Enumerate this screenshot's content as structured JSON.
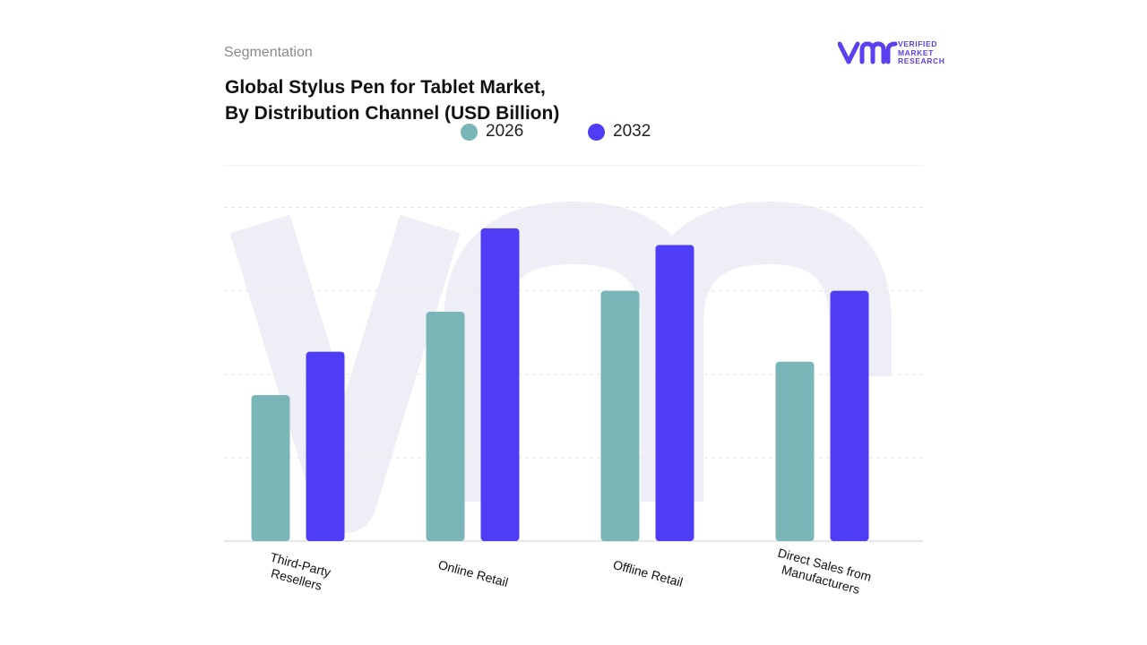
{
  "header": {
    "segment_label": "Segmentation",
    "title_line1": "Global Stylus Pen for Tablet Market,",
    "title_line2": "By Distribution Channel (USD Billion)"
  },
  "brand": {
    "logo_text_1": "VERIFIED",
    "logo_text_2": "MARKET",
    "logo_text_3": "RESEARCH",
    "accent_color": "#5b3ff0",
    "watermark_color": "#eeeef6"
  },
  "chart_data": {
    "type": "bar",
    "title": "Global Stylus Pen for Tablet Market, By Distribution Channel (USD Billion)",
    "categories": [
      "Third-Party\nResellers",
      "Online Retail",
      "Offline Retail",
      "Direct Sales from\nManufacturers"
    ],
    "series": [
      {
        "name": "2026",
        "color": "#7ab5b8",
        "values": [
          1.75,
          2.75,
          3.0,
          2.15
        ]
      },
      {
        "name": "2032",
        "color": "#4f3cf5",
        "values": [
          2.27,
          3.75,
          3.55,
          3.0
        ]
      }
    ],
    "ylim": [
      0,
      4.5
    ],
    "grid": true,
    "legend_position": "top-center",
    "xlabel": "",
    "ylabel": ""
  }
}
